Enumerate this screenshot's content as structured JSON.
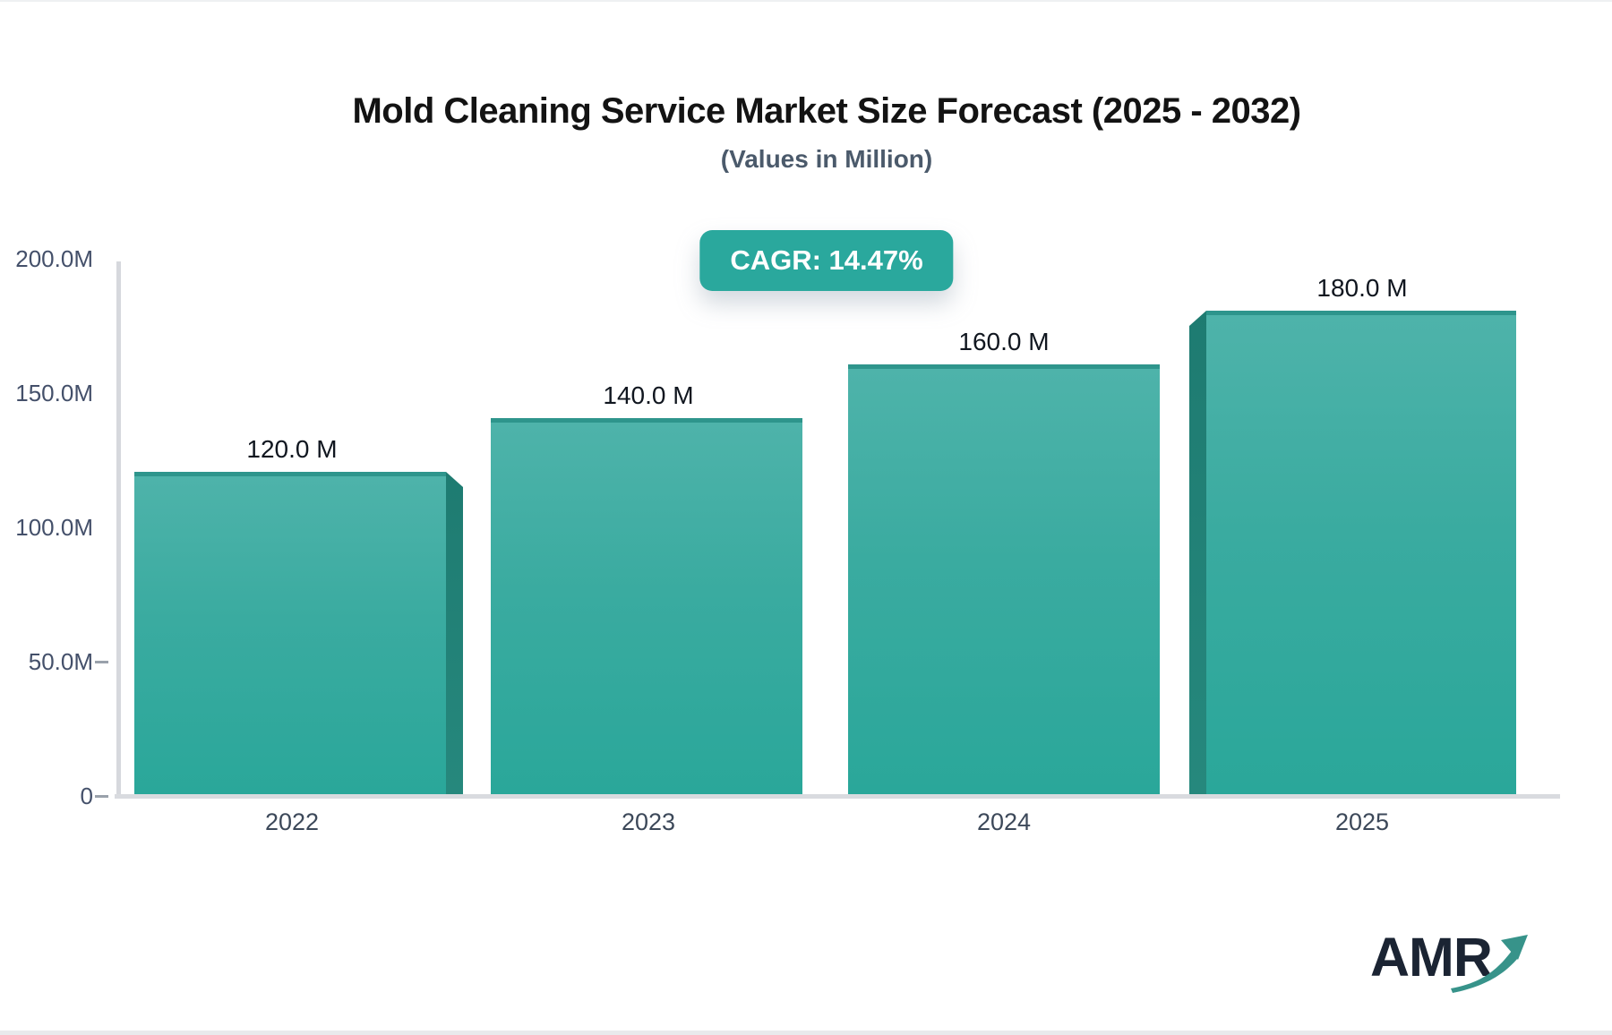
{
  "header": {
    "title": "Mold Cleaning Service Market Size Forecast (2025 - 2032)",
    "subtitle": "(Values in Million)",
    "cagr_label": "CAGR: 14.47%"
  },
  "logo": {
    "text": "AMR"
  },
  "colors": {
    "bar_gradient_top": "#4eb3aa",
    "bar_gradient_bottom": "#2aa79a",
    "bar_top_border": "#2e958c",
    "bar_bevel": "#1e7b71",
    "badge_background": "#2aa89d",
    "badge_text": "#ffffff",
    "axis_line": "#d6d8dd",
    "axis_label": "#44506a",
    "title_text": "#131313"
  },
  "chart_data": {
    "type": "bar",
    "title": "Mold Cleaning Service Market Size Forecast (2025 - 2032)",
    "subtitle": "(Values in Million)",
    "unit": "Million",
    "cagr": "14.47%",
    "categories": [
      "2022",
      "2023",
      "2024",
      "2025"
    ],
    "values": [
      120,
      140,
      160,
      180
    ],
    "value_labels": [
      "120.0 M",
      "140.0 M",
      "160.0 M",
      "180.0 M"
    ],
    "ylim": [
      0,
      200
    ],
    "y_ticks": [
      {
        "label": "200.0M",
        "value": 200,
        "dash": false
      },
      {
        "label": "150.0M",
        "value": 150,
        "dash": false
      },
      {
        "label": "100.0M",
        "value": 100,
        "dash": false
      },
      {
        "label": "50.0M",
        "value": 50,
        "dash": true
      },
      {
        "label": "0",
        "value": 0,
        "dash": true
      }
    ],
    "grid": false,
    "legend": "none"
  }
}
